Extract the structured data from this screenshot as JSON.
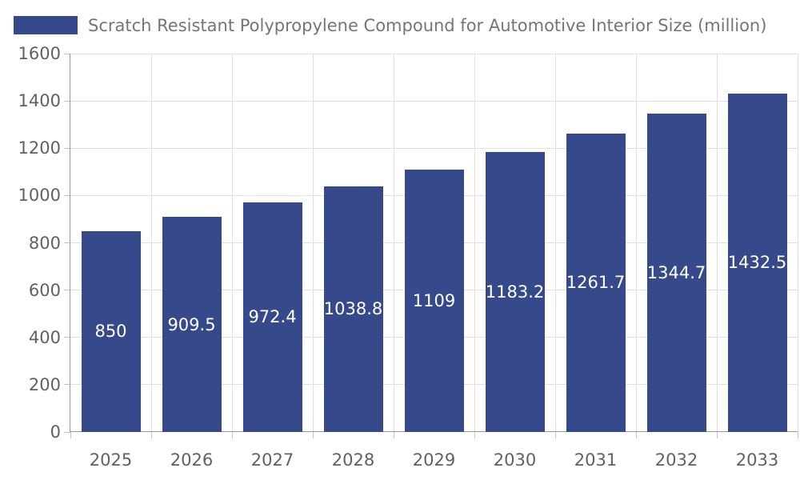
{
  "chart_data": {
    "type": "bar",
    "title": "Scratch Resistant Polypropylene Compound for Automotive Interior Size (million)",
    "categories": [
      "2025",
      "2026",
      "2027",
      "2028",
      "2029",
      "2030",
      "2031",
      "2032",
      "2033"
    ],
    "values": [
      850,
      909.5,
      972.4,
      1038.8,
      1109,
      1183.2,
      1261.7,
      1344.7,
      1432.5
    ],
    "value_labels": [
      "850",
      "909.5",
      "972.4",
      "1038.8",
      "1109",
      "1183.2",
      "1261.7",
      "1344.7",
      "1432.5"
    ],
    "ylim": [
      0,
      1600
    ],
    "ytick_step": 200,
    "ytick_labels": [
      "0",
      "200",
      "400",
      "600",
      "800",
      "1000",
      "1200",
      "1400",
      "1600"
    ],
    "grid": true,
    "legend_position": "top-left",
    "colors": {
      "bar": "#364A8B",
      "bar_label": "#FFFFFF",
      "grid": "#E0E0E0",
      "tick": "#C4C4C4",
      "axis": "#999999",
      "tick_text": "#616161",
      "title_text": "#757575",
      "background": "#FFFFFF"
    }
  }
}
